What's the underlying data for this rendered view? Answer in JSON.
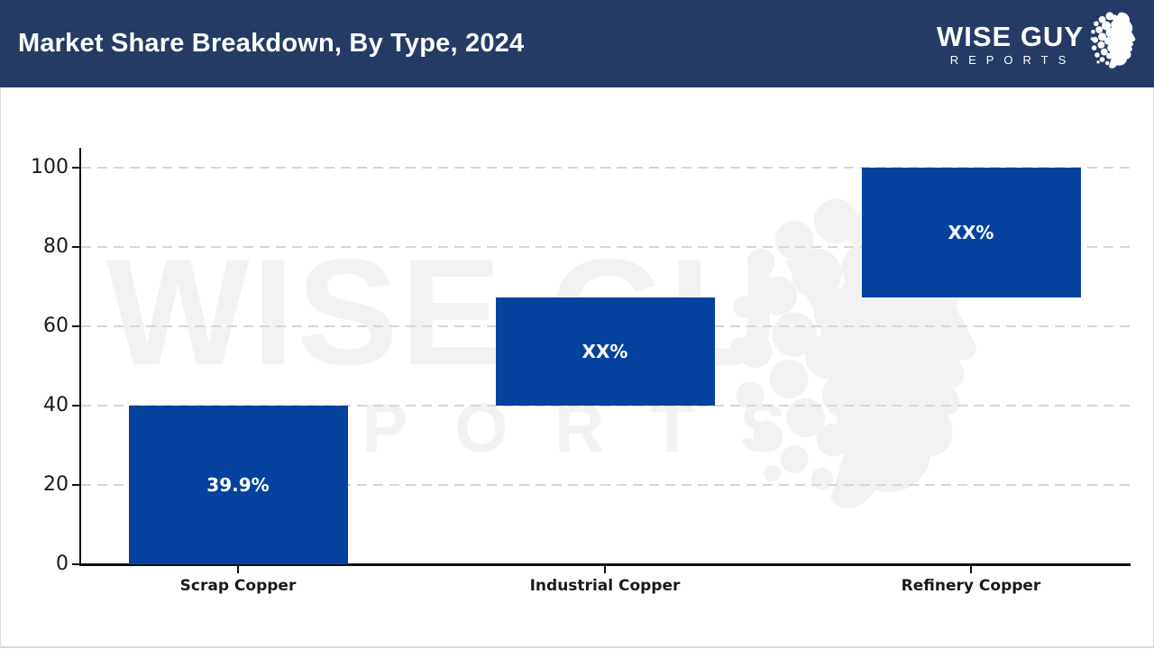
{
  "header": {
    "title": "Market Share Breakdown, By Type, 2024",
    "logo": {
      "line1": "WISE GUY",
      "line2": "REPORTS"
    }
  },
  "watermark": {
    "line1": "WISE GUY",
    "line2": "REPORTS"
  },
  "colors": {
    "header_bg": "#253b66",
    "bar": "#04429d",
    "bar_label": "#ffffff",
    "grid": "#d6d6d6",
    "axis": "#111111",
    "tick_label": "#1a1a1a",
    "watermark": "#f2f2f4"
  },
  "chart_data": {
    "type": "bar",
    "variant": "floating-waterfall",
    "title": "Market Share Breakdown, By Type, 2024",
    "categories": [
      "Scrap Copper",
      "Industrial Copper",
      "Refinery Copper"
    ],
    "segments": [
      {
        "category": "Scrap Copper",
        "start": 0,
        "end": 39.9,
        "label": "39.9%"
      },
      {
        "category": "Industrial Copper",
        "start": 39.9,
        "end": 67.3,
        "label": "XX%"
      },
      {
        "category": "Refinery Copper",
        "start": 67.3,
        "end": 100,
        "label": "XX%"
      }
    ],
    "xlabel": "",
    "ylabel": "",
    "ylim": [
      0,
      105
    ],
    "yticks": [
      0,
      20,
      40,
      60,
      80,
      100
    ],
    "grid": "horizontal-dashed",
    "legend": "none"
  }
}
